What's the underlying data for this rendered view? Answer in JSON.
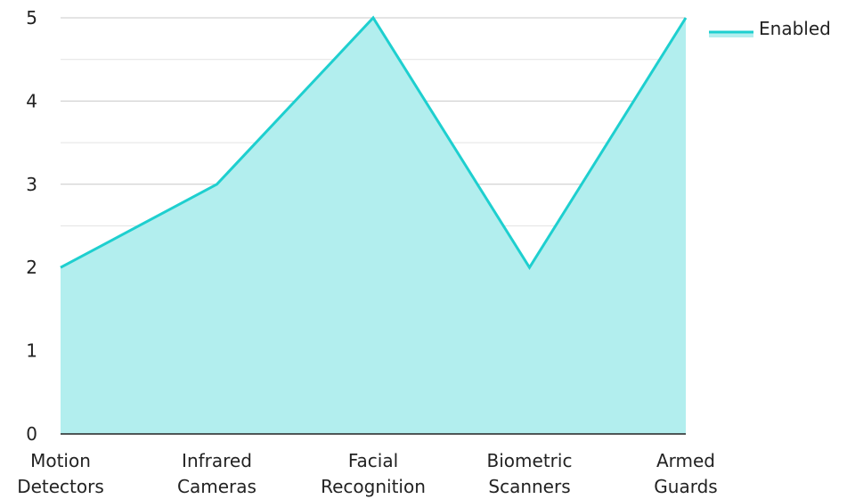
{
  "chart_data": {
    "type": "area",
    "categories": [
      [
        "Motion",
        "Detectors"
      ],
      [
        "Infrared",
        "Cameras"
      ],
      [
        "Facial",
        "Recognition"
      ],
      [
        "Biometric",
        "Scanners"
      ],
      [
        "Armed",
        "Guards"
      ]
    ],
    "series": [
      {
        "name": "Enabled",
        "values": [
          2,
          3,
          5,
          2,
          5
        ],
        "color": "#1ecfcf",
        "fill": "#b2eeee"
      }
    ],
    "ylim": [
      0,
      5
    ],
    "yticks": [
      "0",
      "1",
      "2",
      "3",
      "4",
      "5"
    ],
    "grid": true,
    "legend": "top-right"
  }
}
